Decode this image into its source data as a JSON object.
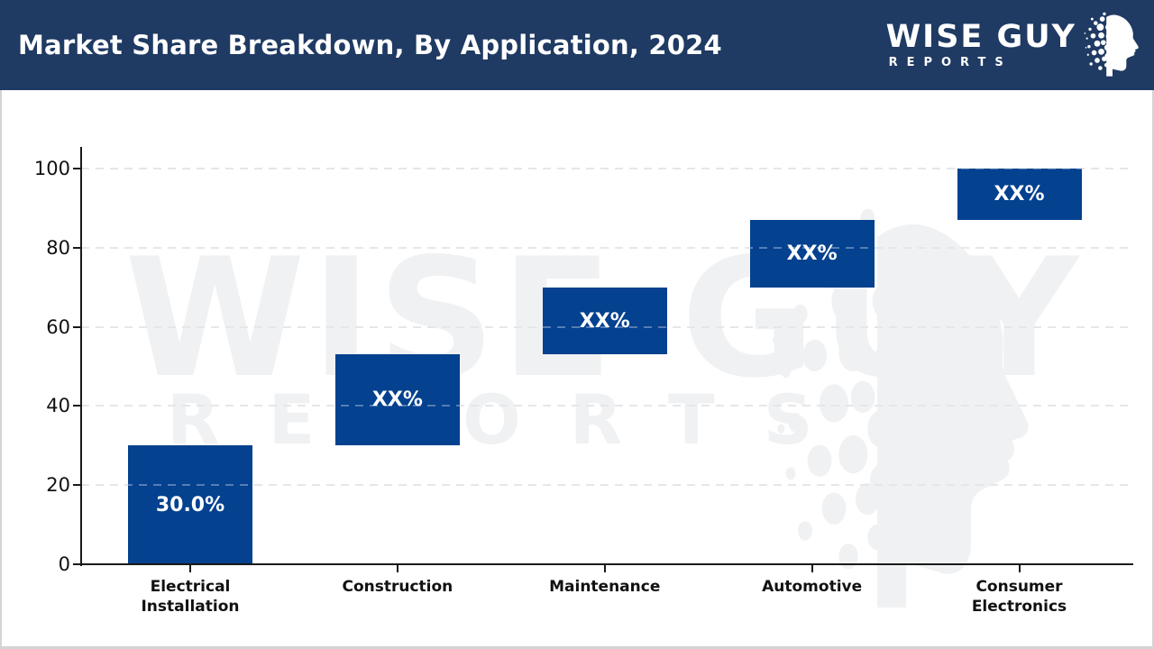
{
  "header": {
    "title": "Market Share Breakdown, By Application, 2024",
    "logo_line1": "WISE GUY",
    "logo_line2": "REPORTS"
  },
  "watermark": {
    "line1": "WISE GUY",
    "line2": "REPORTS"
  },
  "chart_data": {
    "type": "bar",
    "subtype": "waterfall",
    "title": "Market Share Breakdown, By Application, 2024",
    "categories": [
      "Electrical Installation",
      "Construction",
      "Maintenance",
      "Automotive",
      "Consumer Electronics"
    ],
    "segments": [
      {
        "category": "Electrical Installation",
        "start": 0,
        "end": 30,
        "label": "30.0%"
      },
      {
        "category": "Construction",
        "start": 30,
        "end": 53,
        "label": "XX%"
      },
      {
        "category": "Maintenance",
        "start": 53,
        "end": 70,
        "label": "XX%"
      },
      {
        "category": "Automotive",
        "start": 70,
        "end": 87,
        "label": "XX%"
      },
      {
        "category": "Consumer Electronics",
        "start": 87,
        "end": 100,
        "label": "XX%"
      }
    ],
    "yticks": [
      0,
      20,
      40,
      60,
      80,
      100
    ],
    "ylim": [
      0,
      105.5
    ],
    "xlabel": "",
    "ylabel": "",
    "grid": "dashed-horizontal",
    "legend": "none"
  },
  "colors": {
    "header_bg": "#1f3a63",
    "bar": "#04418f",
    "bar_label": "#ffffff",
    "watermark": "#f0f1f3",
    "axis": "#1a1a1a",
    "grid": "#d9dbde"
  }
}
